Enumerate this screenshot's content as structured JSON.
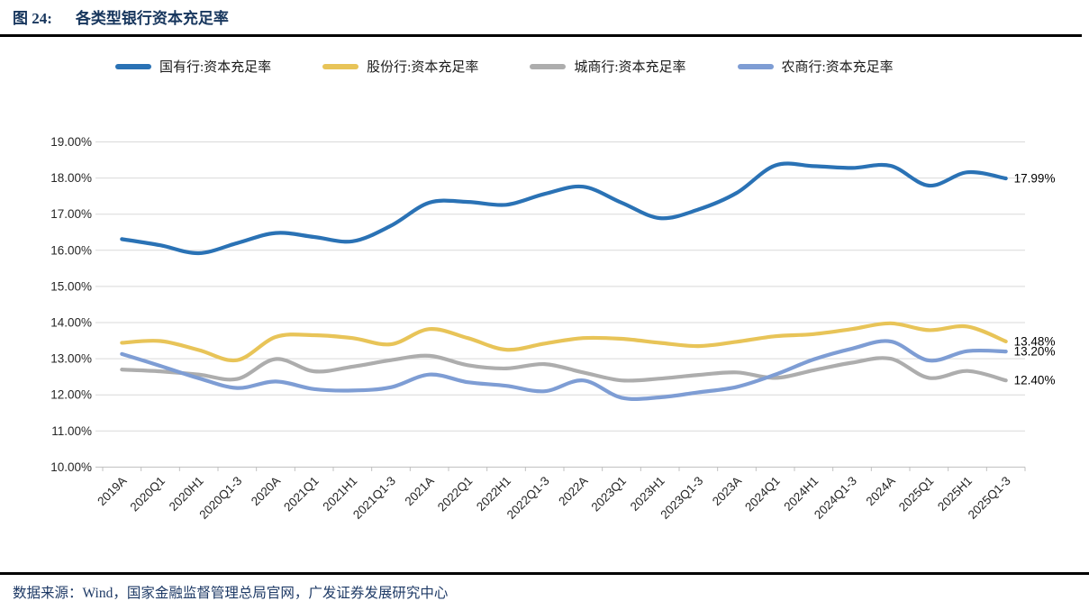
{
  "figure": {
    "tag": "图 24:",
    "title": "各类型银行资本充足率"
  },
  "source_line": "数据来源：Wind，国家金融监督管理总局官网，广发证券发展研究中心",
  "colors": {
    "title_text": "#17365D",
    "source_text": "#1E3A66",
    "rule": "#000000",
    "gridline": "#D9D9D9",
    "axis": "#BFBFBF",
    "tick_text": "#262626",
    "data_label_text": "#000000"
  },
  "chart_data": {
    "type": "line",
    "title": "各类型银行资本充足率",
    "xlabel": "",
    "ylabel": "",
    "ylim": [
      10,
      19
    ],
    "ytick_step": 1,
    "ytick_format": "percent_2dp",
    "grid": true,
    "legend_position": "top",
    "categories": [
      "2019A",
      "2020Q1",
      "2020H1",
      "2020Q1-3",
      "2020A",
      "2021Q1",
      "2021H1",
      "2021Q1-3",
      "2021A",
      "2022Q1",
      "2022H1",
      "2022Q1-3",
      "2022A",
      "2023Q1",
      "2023H1",
      "2023Q1-3",
      "2023A",
      "2024Q1",
      "2024H1",
      "2024Q1-3",
      "2024A",
      "2025Q1",
      "2025H1",
      "2025Q1-3"
    ],
    "series": [
      {
        "name": "国有行:资本充足率",
        "color": "#2A72B5",
        "end_label": "17.99%",
        "values": [
          16.31,
          16.14,
          15.92,
          16.2,
          16.48,
          16.37,
          16.25,
          16.68,
          17.32,
          17.34,
          17.26,
          17.56,
          17.76,
          17.32,
          16.89,
          17.13,
          17.59,
          18.35,
          18.33,
          18.28,
          18.34,
          17.79,
          18.16,
          17.99
        ]
      },
      {
        "name": "股份行:资本充足率",
        "color": "#E8C458",
        "end_label": "13.48%",
        "values": [
          13.44,
          13.49,
          13.24,
          12.96,
          13.6,
          13.65,
          13.57,
          13.4,
          13.82,
          13.57,
          13.25,
          13.42,
          13.57,
          13.55,
          13.44,
          13.35,
          13.47,
          13.62,
          13.68,
          13.82,
          13.98,
          13.79,
          13.89,
          13.48
        ]
      },
      {
        "name": "城商行:资本充足率",
        "color": "#ADADAD",
        "end_label": "12.40%",
        "values": [
          12.7,
          12.65,
          12.56,
          12.44,
          12.99,
          12.65,
          12.78,
          12.96,
          13.08,
          12.82,
          12.73,
          12.85,
          12.62,
          12.4,
          12.45,
          12.55,
          12.62,
          12.47,
          12.68,
          12.89,
          13.0,
          12.47,
          12.66,
          12.4
        ]
      },
      {
        "name": "农商行:资本充足率",
        "color": "#7E9DD4",
        "end_label": "13.20%",
        "values": [
          13.13,
          12.8,
          12.46,
          12.19,
          12.37,
          12.16,
          12.12,
          12.21,
          12.56,
          12.35,
          12.25,
          12.1,
          12.4,
          11.92,
          11.93,
          12.07,
          12.22,
          12.56,
          12.98,
          13.28,
          13.48,
          12.95,
          13.21,
          13.2
        ]
      }
    ]
  }
}
